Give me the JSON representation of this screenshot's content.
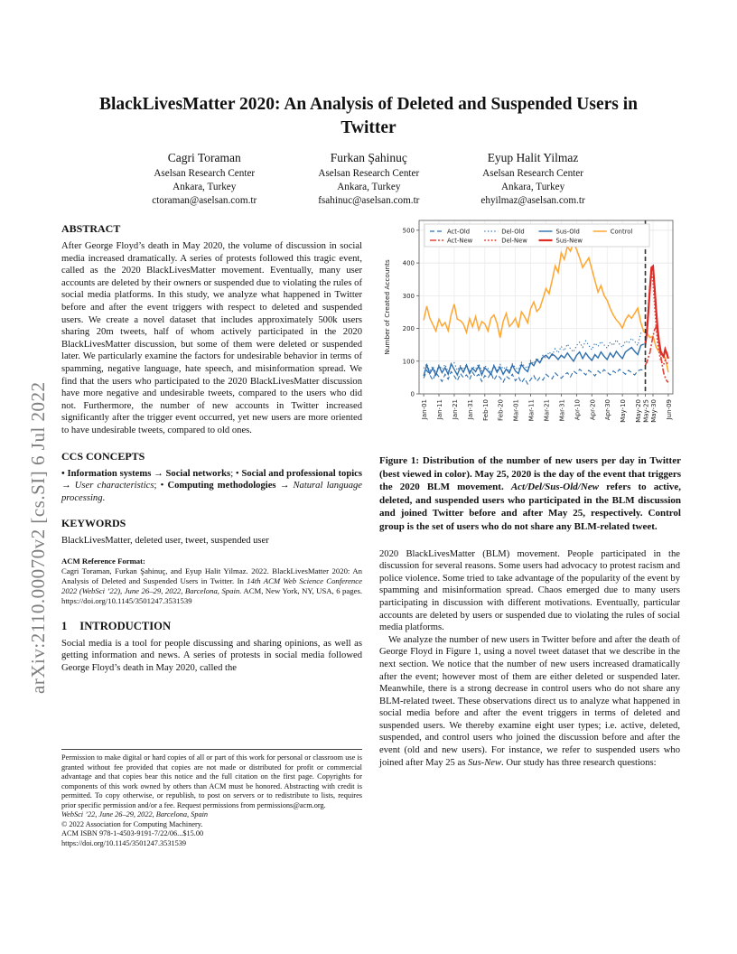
{
  "arxiv_sidebar": "arXiv:2110.00070v2  [cs.SI]  6 Jul 2022",
  "title": "BlackLivesMatter 2020: An Analysis of Deleted and Suspended Users in Twitter",
  "authors": [
    {
      "name": "Cagri Toraman",
      "affil1": "Aselsan Research Center",
      "affil2": "Ankara, Turkey",
      "email": "ctoraman@aselsan.com.tr"
    },
    {
      "name": "Furkan Şahinuç",
      "affil1": "Aselsan Research Center",
      "affil2": "Ankara, Turkey",
      "email": "fsahinuc@aselsan.com.tr"
    },
    {
      "name": "Eyup Halit Yilmaz",
      "affil1": "Aselsan Research Center",
      "affil2": "Ankara, Turkey",
      "email": "ehyilmaz@aselsan.com.tr"
    }
  ],
  "abstract": {
    "heading": "ABSTRACT",
    "text": "After George Floyd’s death in May 2020, the volume of discussion in social media increased dramatically. A series of protests followed this tragic event, called as the 2020 BlackLivesMatter movement. Eventually, many user accounts are deleted by their owners or suspended due to violating the rules of social media platforms. In this study, we analyze what happened in Twitter before and after the event triggers with respect to deleted and suspended users. We create a novel dataset that includes approximately 500k users sharing 20m tweets, half of whom actively participated in the 2020 BlackLivesMatter discussion, but some of them were deleted or suspended later. We particularly examine the factors for undesirable behavior in terms of spamming, negative language, hate speech, and misinformation spread. We find that the users who participated to the 2020 BlackLivesMatter discussion have more negative and undesirable tweets, compared to the users who did not. Furthermore, the number of new accounts in Twitter increased significantly after the trigger event occurred, yet new users are more oriented to have undesirable tweets, compared to old ones."
  },
  "ccs": {
    "heading": "CCS CONCEPTS",
    "segments": [
      {
        "t": "• Information systems",
        "b": true
      },
      {
        "t": " → "
      },
      {
        "t": "Social networks",
        "b": true
      },
      {
        "t": "; • "
      },
      {
        "t": "Social and professional topics",
        "b": true
      },
      {
        "t": " → "
      },
      {
        "t": "User characteristics",
        "i": true
      },
      {
        "t": "; • "
      },
      {
        "t": "Computing methodologies",
        "b": true
      },
      {
        "t": " → "
      },
      {
        "t": "Natural language processing",
        "i": true
      },
      {
        "t": "."
      }
    ]
  },
  "keywords": {
    "heading": "KEYWORDS",
    "text": "BlackLivesMatter, deleted user, tweet, suspended user"
  },
  "acm_reference": {
    "label": "ACM Reference Format:",
    "segments": [
      {
        "t": "Cagri Toraman, Furkan Şahinuç, and Eyup Halit Yilmaz. 2022. BlackLivesMatter 2020: An Analysis of Deleted and Suspended Users in Twitter. In "
      },
      {
        "t": "14th ACM Web Science Conference 2022 (WebSci ’22), June 26–29, 2022, Barcelona, Spain.",
        "i": true
      },
      {
        "t": " ACM, New York, NY, USA, 6 pages. https://doi.org/10.1145/3501247.3531539"
      }
    ]
  },
  "introduction": {
    "number": "1",
    "heading": "INTRODUCTION",
    "paragraph": "Social media is a tool for people discussing and sharing opinions, as well as getting information and news. A series of protests in social media followed George Floyd’s death in May 2020, called the"
  },
  "footnote": {
    "permission": "Permission to make digital or hard copies of all or part of this work for personal or classroom use is granted without fee provided that copies are not made or distributed for profit or commercial advantage and that copies bear this notice and the full citation on the first page. Copyrights for components of this work owned by others than ACM must be honored. Abstracting with credit is permitted. To copy otherwise, or republish, to post on servers or to redistribute to lists, requires prior specific permission and/or a fee. Request permissions from permissions@acm.org.",
    "venue": "WebSci ’22, June 26–29, 2022, Barcelona, Spain",
    "copyright": "© 2022 Association for Computing Machinery.",
    "isbn": "ACM ISBN 978-1-4503-9191-7/22/06...$15.00",
    "doi": "https://doi.org/10.1145/3501247.3531539"
  },
  "figure": {
    "caption_segments": [
      {
        "t": "Figure 1: Distribution of the number of new users per day in Twitter (best viewed in color). May 25, 2020 is the day of the event that triggers the 2020 BLM movement. "
      },
      {
        "t": "Act/Del/Sus-Old/New",
        "i": true
      },
      {
        "t": " refers to active, deleted, and suspended users who participated in the BLM discussion and joined Twitter before and after May 25, respectively. Control group is the set of users who do not share any BLM-related tweet."
      }
    ]
  },
  "right_column": {
    "paragraph1": "2020 BlackLivesMatter (BLM) movement. People participated in the discussion for several reasons. Some users had advocacy to protest racism and police violence. Some tried to take advantage of the popularity of the event by spamming and misinformation spread. Chaos emerged due to many users participating in discussion with different motivations. Eventually, particular accounts are deleted by users or suspended due to violating the rules of social media platforms.",
    "paragraph2_segments": [
      {
        "t": "We analyze the number of new users in Twitter before and after the death of George Floyd in Figure 1, using a novel tweet dataset that we describe in the next section. We notice that the number of new users increased dramatically after the event; however most of them are either deleted or suspended later. Meanwhile, there is a strong decrease in control users who do not share any BLM-related tweet. These observations direct us to analyze what happened in social media before and after the event triggers in terms of deleted and suspended users. We thereby examine eight user types; i.e. active, deleted, suspended, and control users who joined the discussion before and after the event (old and new users). For instance, we refer to suspended users who joined after May 25 as "
      },
      {
        "t": "Sus-New",
        "i": true
      },
      {
        "t": ". Our study has three research questions:"
      }
    ]
  },
  "chart_data": {
    "type": "line",
    "title": "",
    "xlabel": "",
    "ylabel": "Number of Created Accounts",
    "ylim": [
      0,
      530
    ],
    "xlim": [
      -3,
      163
    ],
    "grid": true,
    "legend_position": "upper center, 2 rows x 4 cols",
    "event_day": 145,
    "event_line_color": "#333333",
    "yticks": [
      0,
      100,
      200,
      300,
      400,
      500
    ],
    "xticks": [
      {
        "d": 0,
        "label": "Jan-01"
      },
      {
        "d": 10,
        "label": "Jan-11"
      },
      {
        "d": 20,
        "label": "Jan-21"
      },
      {
        "d": 30,
        "label": "Jan-31"
      },
      {
        "d": 40,
        "label": "Feb-10"
      },
      {
        "d": 50,
        "label": "Feb-20"
      },
      {
        "d": 60,
        "label": "Mar-01"
      },
      {
        "d": 70,
        "label": "Mar-11"
      },
      {
        "d": 80,
        "label": "Mar-21"
      },
      {
        "d": 90,
        "label": "Mar-31"
      },
      {
        "d": 100,
        "label": "Apr-10"
      },
      {
        "d": 110,
        "label": "Apr-20"
      },
      {
        "d": 120,
        "label": "Apr-30"
      },
      {
        "d": 130,
        "label": "May-10"
      },
      {
        "d": 140,
        "label": "May-20"
      },
      {
        "d": 145,
        "label": "May-25"
      },
      {
        "d": 150,
        "label": "May-30"
      },
      {
        "d": 160,
        "label": "Jun-09"
      }
    ],
    "legend_order": [
      "Act-Old",
      "Del-Old",
      "Sus-Old",
      "Control",
      "Act-New",
      "Del-New",
      "Sus-New"
    ],
    "series": [
      {
        "name": "Act-Old",
        "color": "#2f6fad",
        "dash": "5,3",
        "width": 1.1,
        "x0": 0,
        "dx": 2,
        "values": [
          48,
          72,
          58,
          42,
          65,
          52,
          38,
          60,
          45,
          68,
          55,
          40,
          62,
          50,
          58,
          44,
          66,
          52,
          60,
          38,
          56,
          48,
          64,
          42,
          58,
          50,
          36,
          54,
          46,
          60,
          40,
          52,
          34,
          48,
          30,
          44,
          56,
          38,
          50,
          42,
          60,
          52,
          46,
          64,
          55,
          48,
          58,
          65,
          52,
          70,
          62,
          75,
          68,
          58,
          72,
          64,
          55,
          70,
          62,
          74,
          66,
          58,
          70,
          63,
          75,
          68,
          60,
          72,
          65,
          58,
          70,
          74,
          72
        ]
      },
      {
        "name": "Del-Old",
        "color": "#2f6fad",
        "dash": "1.3,2.4",
        "width": 1.1,
        "x0": 0,
        "dx": 2,
        "values": [
          78,
          92,
          70,
          85,
          65,
          88,
          75,
          90,
          68,
          82,
          95,
          72,
          86,
          74,
          90,
          68,
          84,
          76,
          92,
          70,
          86,
          78,
          64,
          88,
          72,
          90,
          76,
          84,
          68,
          92,
          80,
          74,
          96,
          84,
          78,
          102,
          92,
          110,
          98,
          118,
          108,
          128,
          118,
          138,
          125,
          145,
          132,
          152,
          138,
          128,
          148,
          158,
          142,
          162,
          148,
          135,
          155,
          145,
          160,
          150,
          140,
          158,
          148,
          165,
          152,
          142,
          162,
          155,
          170,
          160,
          148,
          185,
          192
        ]
      },
      {
        "name": "Sus-Old",
        "color": "#2f6fad",
        "dash": "",
        "width": 1.4,
        "x0": 0,
        "dx": 2,
        "values": [
          55,
          88,
          62,
          78,
          58,
          85,
          65,
          80,
          60,
          92,
          75,
          58,
          82,
          66,
          88,
          62,
          78,
          68,
          85,
          58,
          80,
          70,
          60,
          86,
          66,
          82,
          60,
          76,
          64,
          88,
          70,
          62,
          90,
          76,
          68,
          96,
          86,
          105,
          95,
          112,
          118,
          108,
          122,
          115,
          105,
          118,
          110,
          125,
          112,
          100,
          118,
          128,
          108,
          125,
          112,
          102,
          120,
          110,
          128,
          115,
          105,
          125,
          112,
          130,
          118,
          108,
          128,
          135,
          142,
          130,
          120,
          148,
          152
        ]
      },
      {
        "name": "Control",
        "color": "#ffa630",
        "dash": "",
        "width": 1.5,
        "x0": 0,
        "dx": 2,
        "values": [
          225,
          268,
          232,
          212,
          192,
          228,
          207,
          218,
          193,
          242,
          274,
          228,
          224,
          213,
          188,
          230,
          205,
          236,
          196,
          221,
          214,
          192,
          231,
          241,
          216,
          172,
          221,
          246,
          206,
          216,
          231,
          202,
          251,
          236,
          217,
          261,
          281,
          252,
          262,
          291,
          322,
          306,
          347,
          391,
          371,
          431,
          411,
          451,
          436,
          464,
          441,
          416,
          386,
          401,
          416,
          381,
          346,
          311,
          331,
          301,
          286,
          261,
          241,
          226,
          216,
          201,
          226,
          241,
          231,
          246,
          262,
          218,
          190,
          186,
          172,
          176,
          143,
          128,
          121,
          111,
          66
        ]
      },
      {
        "name": "Act-New",
        "color": "#e0433c",
        "dash": "7,2,2,2",
        "width": 1.6,
        "x0": 145,
        "dx": 1,
        "values": [
          88,
          96,
          112,
          126,
          152,
          176,
          196,
          205,
          184,
          150,
          118,
          88,
          64,
          50,
          40,
          35
        ]
      },
      {
        "name": "Del-New",
        "color": "#e0433c",
        "dash": "1.6,2.2",
        "width": 1.8,
        "x0": 145,
        "dx": 1,
        "values": [
          148,
          192,
          262,
          332,
          368,
          344,
          278,
          208,
          158,
          128,
          104,
          95,
          90,
          102,
          96,
          88
        ]
      },
      {
        "name": "Sus-New",
        "color": "#e02b24",
        "dash": "",
        "width": 2.2,
        "x0": 145,
        "dx": 1,
        "values": [
          152,
          188,
          252,
          322,
          386,
          390,
          328,
          258,
          198,
          158,
          130,
          120,
          114,
          136,
          124,
          108
        ]
      }
    ]
  }
}
